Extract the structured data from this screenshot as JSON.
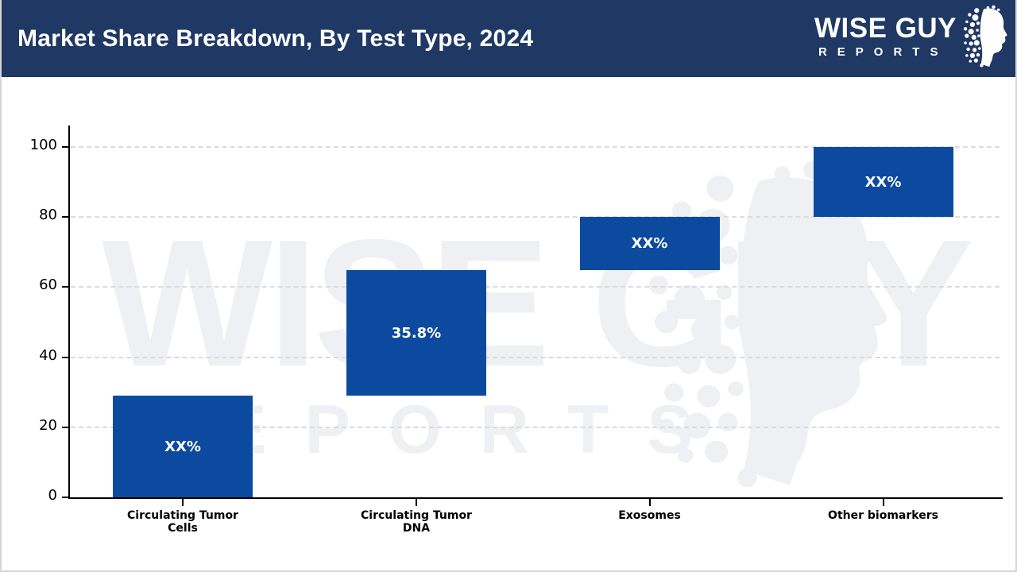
{
  "header": {
    "title": "Market Share Breakdown, By Test Type, 2024",
    "logo": {
      "name": "WISE GUY",
      "sub": "REPORTS"
    }
  },
  "watermark": {
    "line1": "WISE GUY",
    "line2": "REPORTS"
  },
  "colors": {
    "header_bg": "#1f3864",
    "bar": "#0c4aa0",
    "grid": "#d9dbde",
    "axis": "#000000",
    "bar_label_text": "#ffffff",
    "watermark": "#eef0f3"
  },
  "chart_data": {
    "type": "bar",
    "subtype": "waterfall",
    "title": "Market Share Breakdown, By Test Type, 2024",
    "categories": [
      "Circulating Tumor\nCells",
      "Circulating Tumor\nDNA",
      "Exosomes",
      "Other biomarkers"
    ],
    "segments": [
      {
        "category": "Circulating Tumor Cells",
        "label": "XX%",
        "start": 0,
        "end": 29
      },
      {
        "category": "Circulating Tumor DNA",
        "label": "35.8%",
        "start": 29,
        "end": 64.8,
        "value": 35.8
      },
      {
        "category": "Exosomes",
        "label": "XX%",
        "start": 64.8,
        "end": 80
      },
      {
        "category": "Other biomarkers",
        "label": "XX%",
        "start": 80,
        "end": 100
      }
    ],
    "cumulative": [
      29,
      64.8,
      80,
      100
    ],
    "xlabel": "",
    "ylabel": "",
    "ylim": [
      0,
      105
    ],
    "yticks": [
      0,
      20,
      40,
      60,
      80,
      100
    ],
    "grid": "horizontal-dashed",
    "legend": "none"
  }
}
